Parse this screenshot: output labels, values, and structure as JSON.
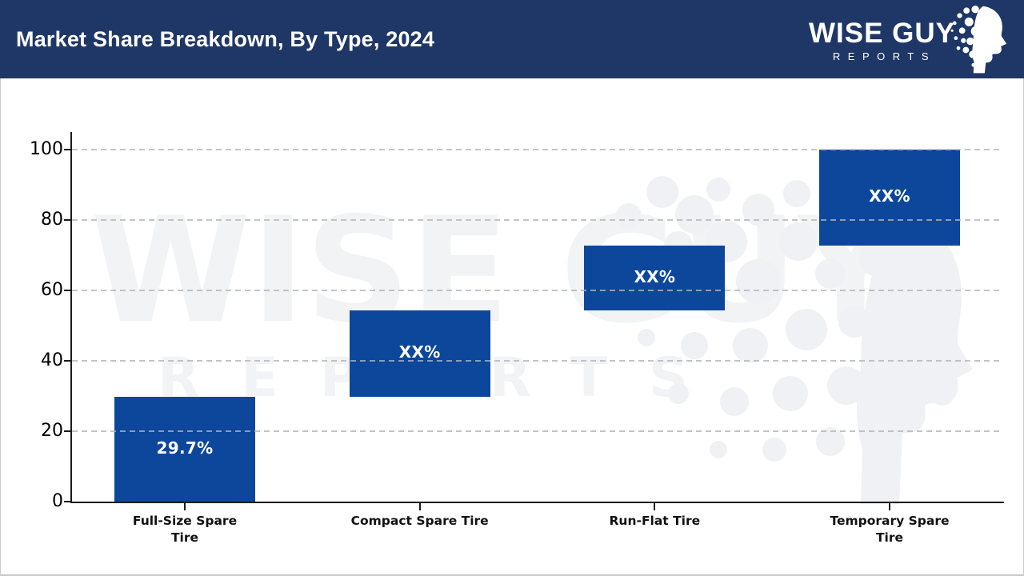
{
  "header": {
    "title": "Market Share Breakdown, By Type, 2024",
    "logo": {
      "line1": "WISE GUY",
      "line2": "REPORTS"
    }
  },
  "watermark": {
    "line1": "WISE GUY",
    "line2": "REPORTS"
  },
  "colors": {
    "header_navy": "#1f3766",
    "bar_blue": "#0c479c",
    "bar_label_white": "#ffffff",
    "watermark_gray": "#f2f3f5",
    "grid_gray": "#c9c9c9",
    "axis_black": "#1a1a1a"
  },
  "chart_data": {
    "type": "bar",
    "subtype": "waterfall",
    "title": "Market Share Breakdown, By Type, 2024",
    "xlabel": "",
    "ylabel": "",
    "ylim": [
      0,
      100
    ],
    "y_ticks": [
      0,
      20,
      40,
      60,
      80,
      100
    ],
    "grid": "horizontal dashed, drawn over bars",
    "legend": "none",
    "categories": [
      "Full-Size Spare Tire",
      "Compact Spare Tire",
      "Run-Flat Tire",
      "Temporary Spare Tire"
    ],
    "segments": [
      {
        "category": "Full-Size Spare Tire",
        "label_lines": [
          "Full-Size Spare",
          "Tire"
        ],
        "start": 0,
        "end": 29.7,
        "value_label": "29.7%"
      },
      {
        "category": "Compact Spare Tire",
        "label_lines": [
          "Compact Spare Tire"
        ],
        "start": 29.7,
        "end": 54.3,
        "value_label": "XX%"
      },
      {
        "category": "Run-Flat Tire",
        "label_lines": [
          "Run-Flat Tire"
        ],
        "start": 54.3,
        "end": 72.7,
        "value_label": "XX%"
      },
      {
        "category": "Temporary Spare Tire",
        "label_lines": [
          "Temporary Spare",
          "Tire"
        ],
        "start": 72.7,
        "end": 100.0,
        "value_label": "XX%"
      }
    ]
  }
}
